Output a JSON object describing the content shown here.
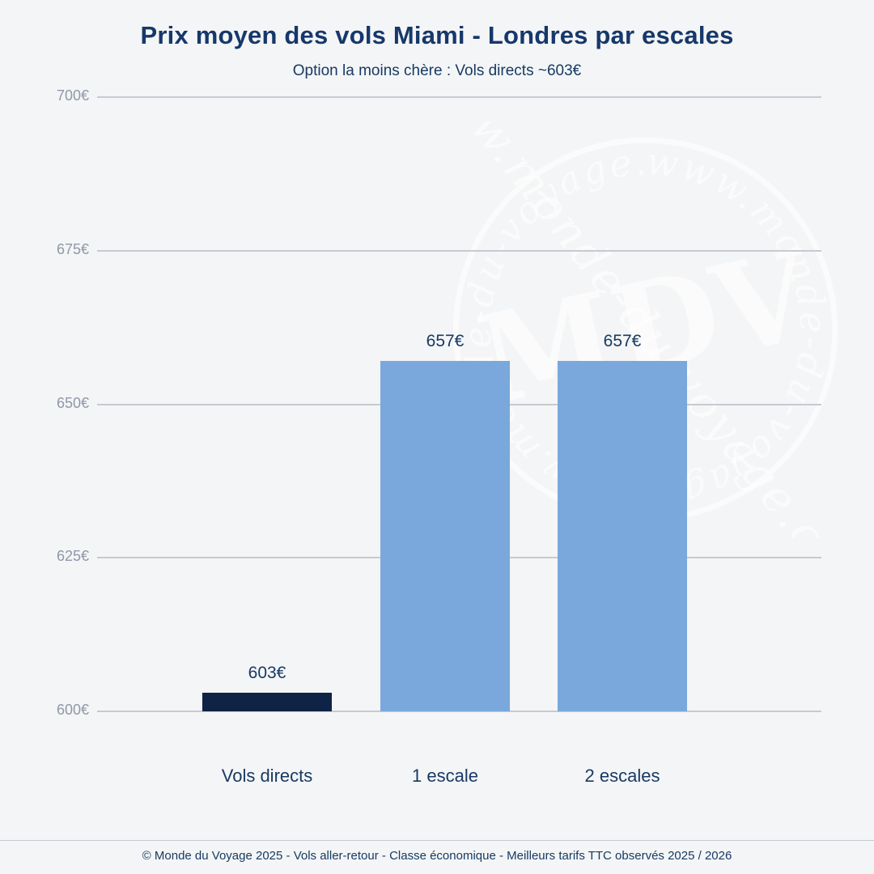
{
  "chart_data": {
    "type": "bar",
    "title": "Prix moyen des vols Miami - Londres par escales",
    "subtitle": "Option la moins chère : Vols directs ~603€",
    "categories": [
      "Vols directs",
      "1 escale",
      "2 escales"
    ],
    "values": [
      603,
      657,
      657
    ],
    "value_labels": [
      "603€",
      "657€",
      "657€"
    ],
    "bar_colors": [
      "#0e2345",
      "#7aa8dd",
      "#7aa8dd"
    ],
    "xlabel": "",
    "ylabel": "",
    "ylim": [
      600,
      700
    ],
    "yticks": [
      600,
      625,
      650,
      675,
      700
    ],
    "ytick_labels": [
      "600€",
      "625€",
      "650€",
      "675€",
      "700€"
    ],
    "grid": true,
    "legend": false
  },
  "watermark": {
    "text": "www.monde-du-voyage.com",
    "center_text": "MDV"
  },
  "footer": {
    "text": "© Monde du Voyage 2025 - Vols aller-retour - Classe économique - Meilleurs tarifs TTC observés 2025 / 2026"
  },
  "colors": {
    "background": "#f4f5f6",
    "title": "#16386b",
    "ink": "#173a64",
    "tick": "#8f98a8",
    "grid": "#c6cad2",
    "bar_light": "#7aa8dd",
    "bar_dark": "#0e2345",
    "watermark_fill": "rgba(255,255,255,0.6)"
  }
}
